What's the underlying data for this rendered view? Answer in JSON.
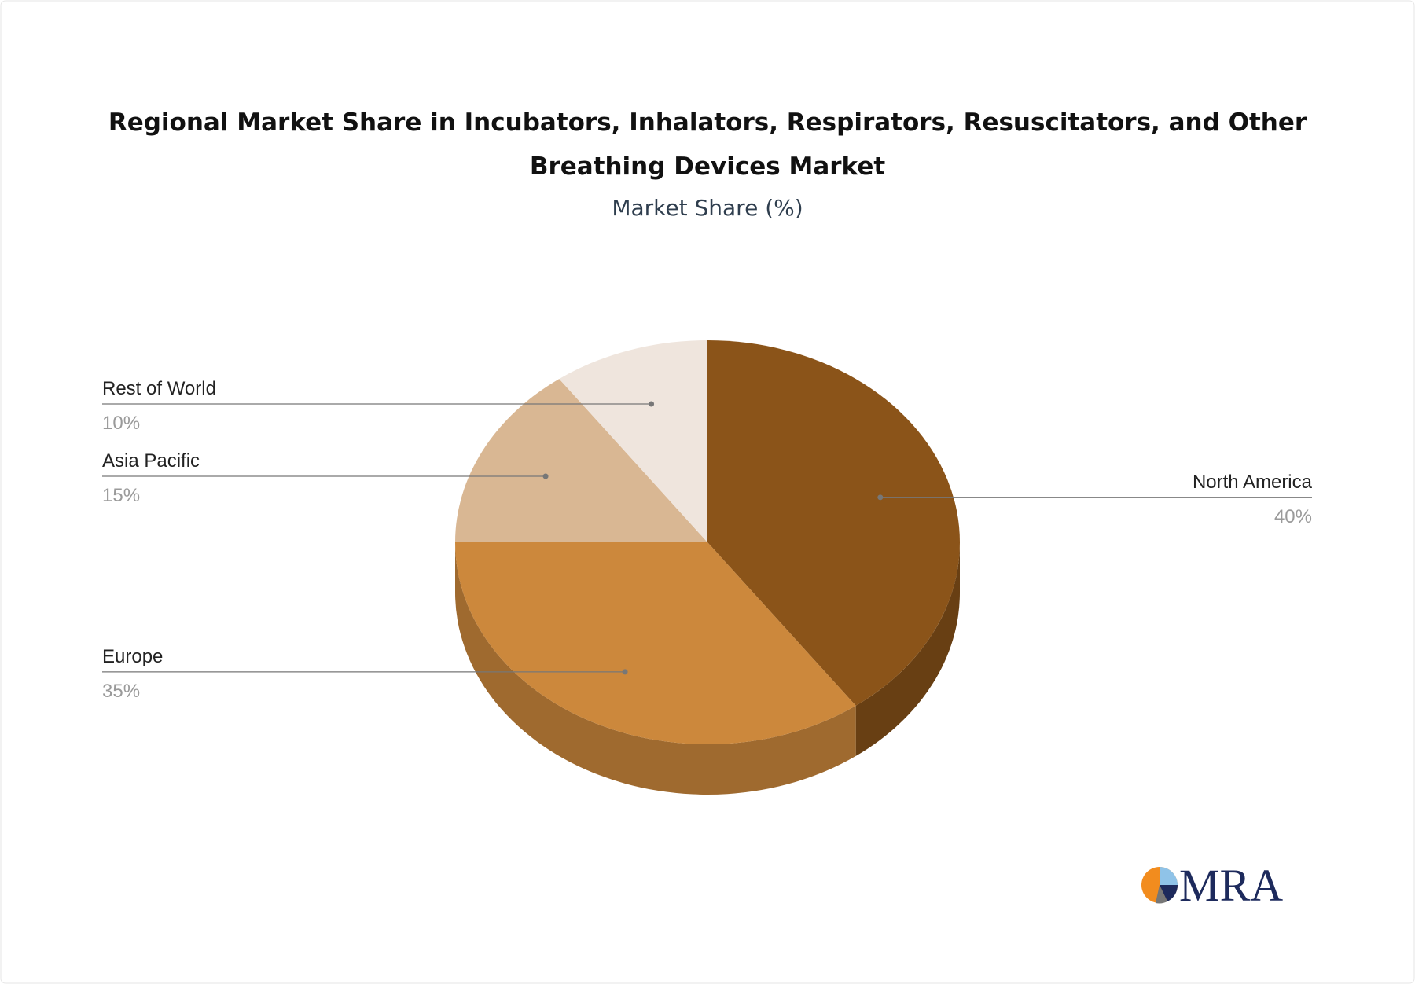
{
  "chart_data": {
    "type": "pie3d",
    "title": "Regional Market Share in Incubators, Inhalators, Respirators, Resuscitators, and Other Breathing Devices Market",
    "subtitle": "Market Share (%)",
    "categories": [
      "North America",
      "Europe",
      "Asia Pacific",
      "Rest of World"
    ],
    "values": [
      40,
      35,
      15,
      10
    ],
    "value_labels": [
      "40%",
      "35%",
      "15%",
      "10%"
    ],
    "colors": [
      "#8b5419",
      "#cc883c",
      "#d9b793",
      "#efe5dd"
    ]
  },
  "logo": "MRA"
}
